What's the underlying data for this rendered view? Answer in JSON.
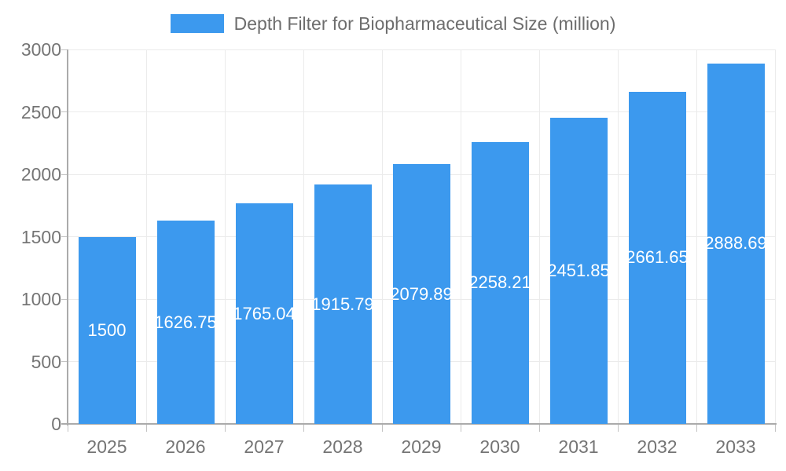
{
  "chart_data": {
    "type": "bar",
    "title": "Depth Filter for Biopharmaceutical Size (million)",
    "legend_position": "top",
    "grid": true,
    "categories": [
      "2025",
      "2026",
      "2027",
      "2028",
      "2029",
      "2030",
      "2031",
      "2032",
      "2033"
    ],
    "series": [
      {
        "name": "Depth Filter for Biopharmaceutical Size (million)",
        "values": [
          1500,
          1626.75,
          1765.04,
          1915.79,
          2079.89,
          2258.21,
          2451.85,
          2661.65,
          2888.69
        ],
        "value_labels": [
          "1500",
          "1626.75",
          "1765.04",
          "1915.79",
          "2079.89",
          "2258.21",
          "2451.85",
          "2661.65",
          "2888.69"
        ]
      }
    ],
    "xlabel": "",
    "ylabel": "",
    "ylim": [
      0,
      3000
    ],
    "yticks": [
      0,
      500,
      1000,
      1500,
      2000,
      2500,
      3000
    ],
    "colors": {
      "bar": "#3C99EE",
      "value_label": "#ffffff",
      "axis_text": "#757575",
      "title_text": "#6d6d6d",
      "gridline": "#ebebeb",
      "axis_line": "#ababab",
      "tick_mark": "#c3c3c3",
      "background": "#ffffff"
    }
  }
}
